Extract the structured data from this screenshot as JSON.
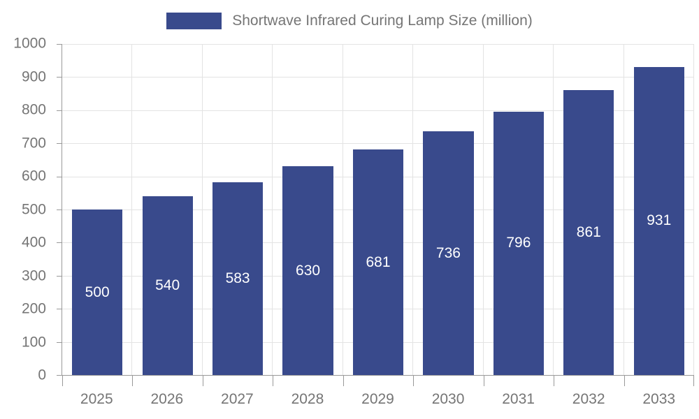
{
  "chart_data": {
    "type": "bar",
    "title": "Shortwave Infrared Curing Lamp Size (million)",
    "categories": [
      "2025",
      "2026",
      "2027",
      "2028",
      "2029",
      "2030",
      "2031",
      "2032",
      "2033"
    ],
    "values": [
      500,
      540,
      583,
      630,
      681,
      736,
      796,
      861,
      931
    ],
    "xlabel": "",
    "ylabel": "",
    "ylim": [
      0,
      1000
    ],
    "y_ticks": [
      0,
      100,
      200,
      300,
      400,
      500,
      600,
      700,
      800,
      900,
      1000
    ],
    "grid": true,
    "legend_position": "top-center",
    "colors": {
      "bar": "#394A8C",
      "value_label": "#ffffff",
      "axis": "#999999",
      "gridline": "#e3e3e3",
      "tick_label": "#757575"
    }
  }
}
